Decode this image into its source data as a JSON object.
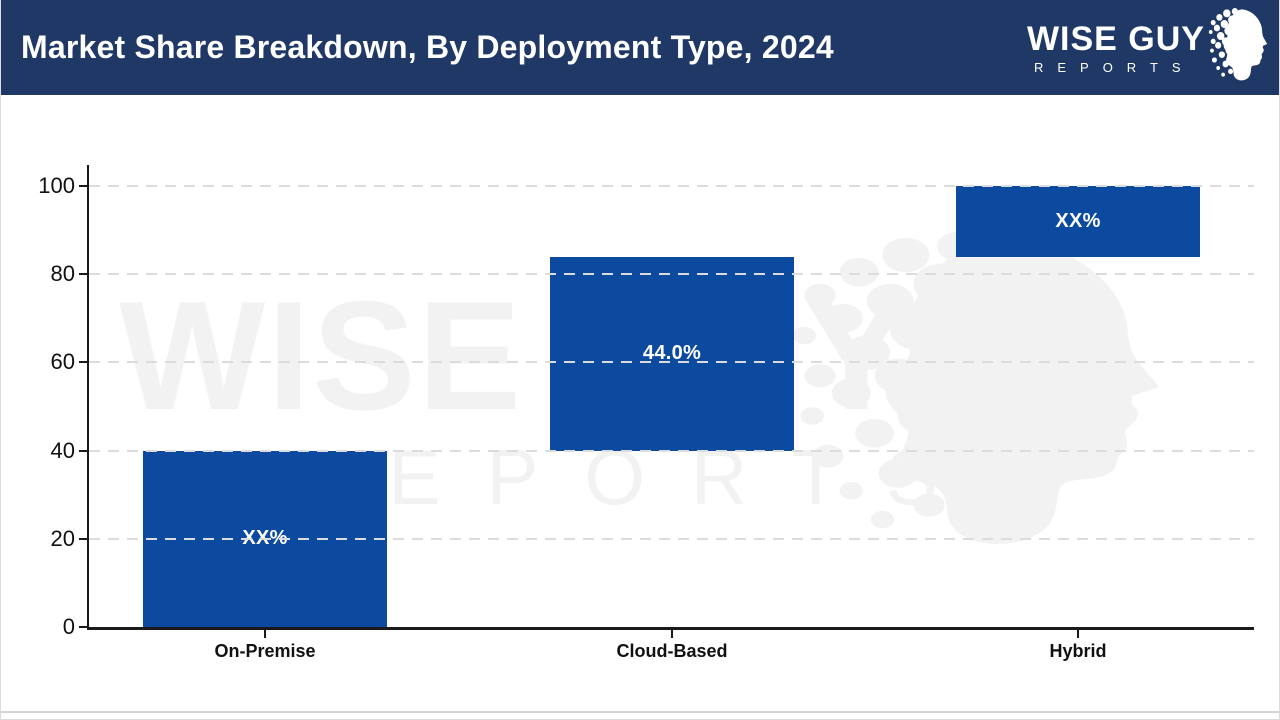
{
  "header": {
    "title": "Market Share Breakdown, By Deployment Type, 2024",
    "background_color": "#1f3865",
    "logo": {
      "name": "Wise Guy Reports",
      "line1": "WISE GUY",
      "line2": "REPORTS"
    }
  },
  "watermark": {
    "line1": "WISE GUY",
    "line2": "REPORTS",
    "color": "#f2f2f2"
  },
  "chart_data": {
    "type": "bar",
    "subtype": "floating-waterfall-segments",
    "title": "Market Share Breakdown, By Deployment Type, 2024",
    "categories": [
      "On-Premise",
      "Cloud-Based",
      "Hybrid"
    ],
    "segments": [
      {
        "category": "On-Premise",
        "start": 0,
        "end": 40,
        "label": "XX%"
      },
      {
        "category": "Cloud-Based",
        "start": 40,
        "end": 84,
        "label": "44.0%"
      },
      {
        "category": "Hybrid",
        "start": 84,
        "end": 100,
        "label": "XX%"
      }
    ],
    "ylim": [
      0,
      100
    ],
    "yticks": [
      0,
      20,
      40,
      60,
      80,
      100
    ],
    "xlabel": "",
    "ylabel": "",
    "grid": "horizontal-dashed",
    "legend": "none",
    "bar_color": "#0b4a9e",
    "bar_label_color": "#ffffff",
    "gridline_color": "#dcdcdc",
    "axis_color": "#1a1a1a"
  }
}
